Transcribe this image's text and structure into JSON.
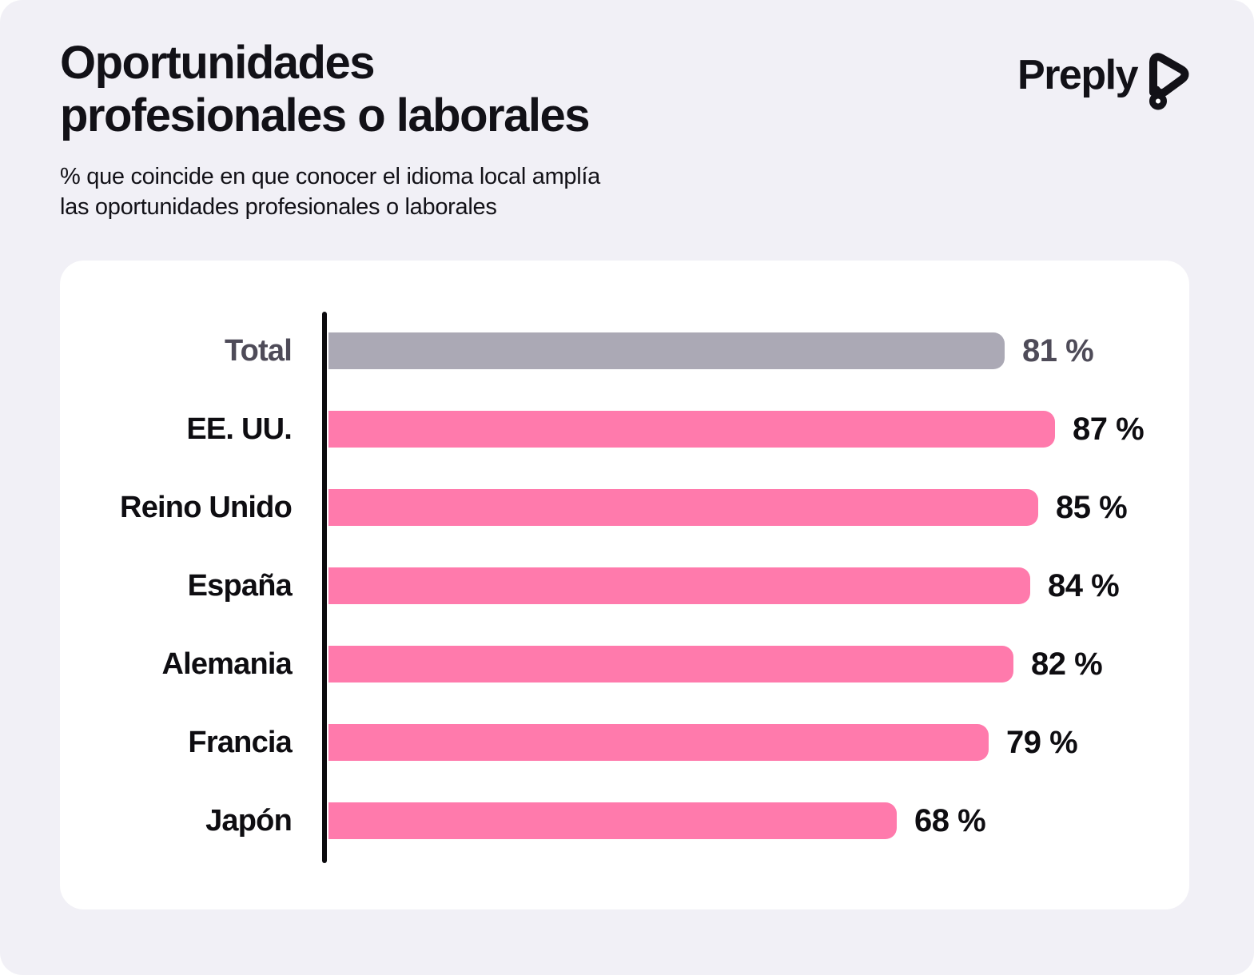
{
  "page": {
    "background_color": "#F1F0F6",
    "card_color": "#FFFFFF"
  },
  "header": {
    "title_lines": [
      "Oportunidades",
      "profesionales o laborales"
    ],
    "subtitle_lines": [
      "% que coincide en que conocer el idioma local amplía",
      "las oportunidades profesionales o laborales"
    ],
    "logo": {
      "wordmark": "Preply"
    }
  },
  "chart_data": {
    "type": "bar",
    "orientation": "horizontal",
    "title": "Oportunidades profesionales o laborales",
    "subtitle": "% que coincide en que conocer el idioma local amplía las oportunidades profesionales o laborales",
    "categories": [
      "Total",
      "EE. UU.",
      "Reino Unido",
      "España",
      "Alemania",
      "Francia",
      "Japón"
    ],
    "values": [
      81,
      87,
      85,
      84,
      82,
      79,
      68
    ],
    "value_labels": [
      "81 %",
      "87 %",
      "85 %",
      "84 %",
      "82 %",
      "79 %",
      "68 %"
    ],
    "xlim": [
      0,
      100
    ],
    "xlabel": "",
    "ylabel": "",
    "grid": false,
    "legend": null,
    "colors": {
      "total_bar": "#ABA9B5",
      "total_text": "#4E4B58",
      "country_bar": "#FF7AAC",
      "country_text": "#0E0D11",
      "axis": "#0C0B0E"
    }
  }
}
